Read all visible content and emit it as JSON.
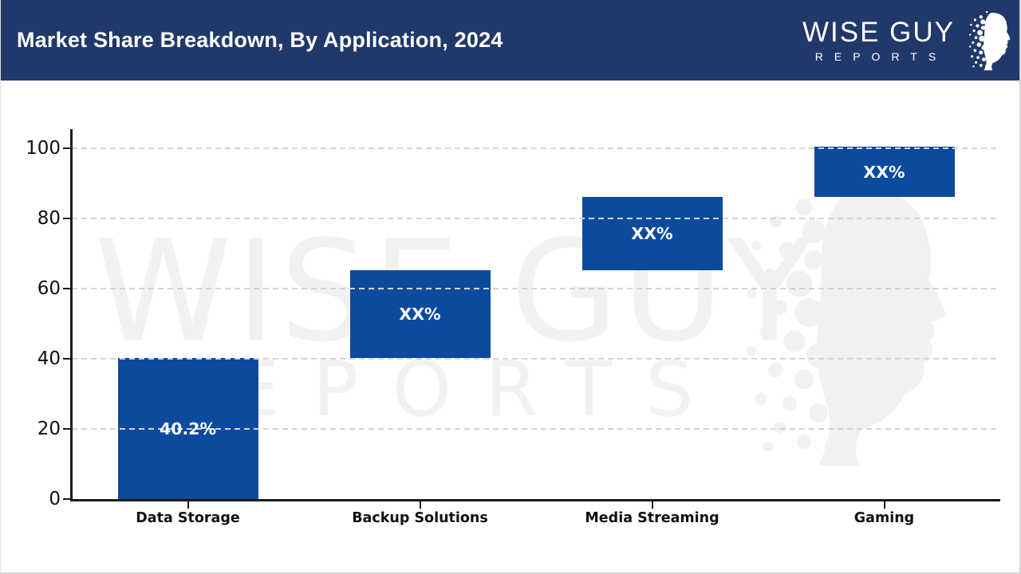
{
  "header": {
    "title": "Market Share Breakdown, By Application, 2024",
    "bg_color": "#21386A",
    "logo": {
      "line1": "WISE GUY",
      "line2": "REPORTS"
    }
  },
  "watermark": {
    "line1": "WISE GUY",
    "line2": "REPORTS",
    "color": "#f1f1f1"
  },
  "chart_data": {
    "type": "bar",
    "variant": "floating-waterfall",
    "title": "Market Share Breakdown, By Application, 2024",
    "categories": [
      "Data Storage",
      "Backup Solutions",
      "Media Streaming",
      "Gaming"
    ],
    "segments": [
      {
        "category": "Data Storage",
        "start": 0,
        "end": 40.2,
        "label": "40.2%"
      },
      {
        "category": "Backup Solutions",
        "start": 40.2,
        "end": 65.2,
        "label": "XX%"
      },
      {
        "category": "Media Streaming",
        "start": 65.2,
        "end": 86.1,
        "label": "XX%"
      },
      {
        "category": "Gaming",
        "start": 86.1,
        "end": 100.4,
        "label": "XX%"
      }
    ],
    "yticks": [
      0,
      20,
      40,
      60,
      80,
      100
    ],
    "ylim": [
      0,
      105.5
    ],
    "xlabel": "",
    "ylabel": "",
    "grid": "horizontal-dashed-above-bars",
    "legend": "none",
    "bar_color": "#0C4A9E",
    "grid_color": "#d4d4d4",
    "axis_color": "#1a1a1a",
    "tick_label_color": "#111111"
  }
}
